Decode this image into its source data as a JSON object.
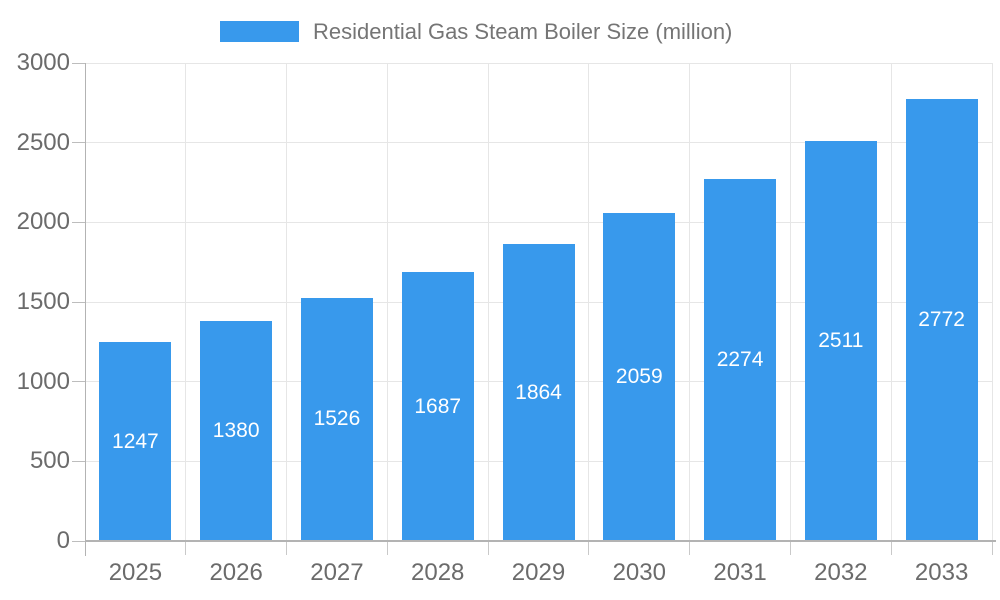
{
  "chart_data": {
    "type": "bar",
    "title": "",
    "xlabel": "",
    "ylabel": "",
    "categories": [
      "2025",
      "2026",
      "2027",
      "2028",
      "2029",
      "2030",
      "2031",
      "2032",
      "2033"
    ],
    "values": [
      1247,
      1380,
      1526,
      1687,
      1864,
      2059,
      2274,
      2511,
      2772
    ],
    "value_labels": [
      "1247",
      "1380",
      "1526",
      "1687",
      "1864",
      "2059",
      "2274",
      "2511",
      "2772"
    ],
    "ylim": [
      0,
      3000
    ],
    "yticks": [
      0,
      500,
      1000,
      1500,
      2000,
      2500,
      3000
    ],
    "ytick_labels": [
      "0",
      "500",
      "1000",
      "1500",
      "2000",
      "2500",
      "3000"
    ],
    "grid": true,
    "legend": {
      "position": "top",
      "label": "Residential Gas Steam Boiler Size (million)"
    },
    "colors": {
      "bar": "#3899ec",
      "bar_value_text": "#ffffff",
      "axis_text": "#6b6b6b",
      "legend_text": "#757575",
      "gridline": "#e6e6e6",
      "axis_line": "#b3b3b3",
      "background": "#ffffff"
    }
  }
}
